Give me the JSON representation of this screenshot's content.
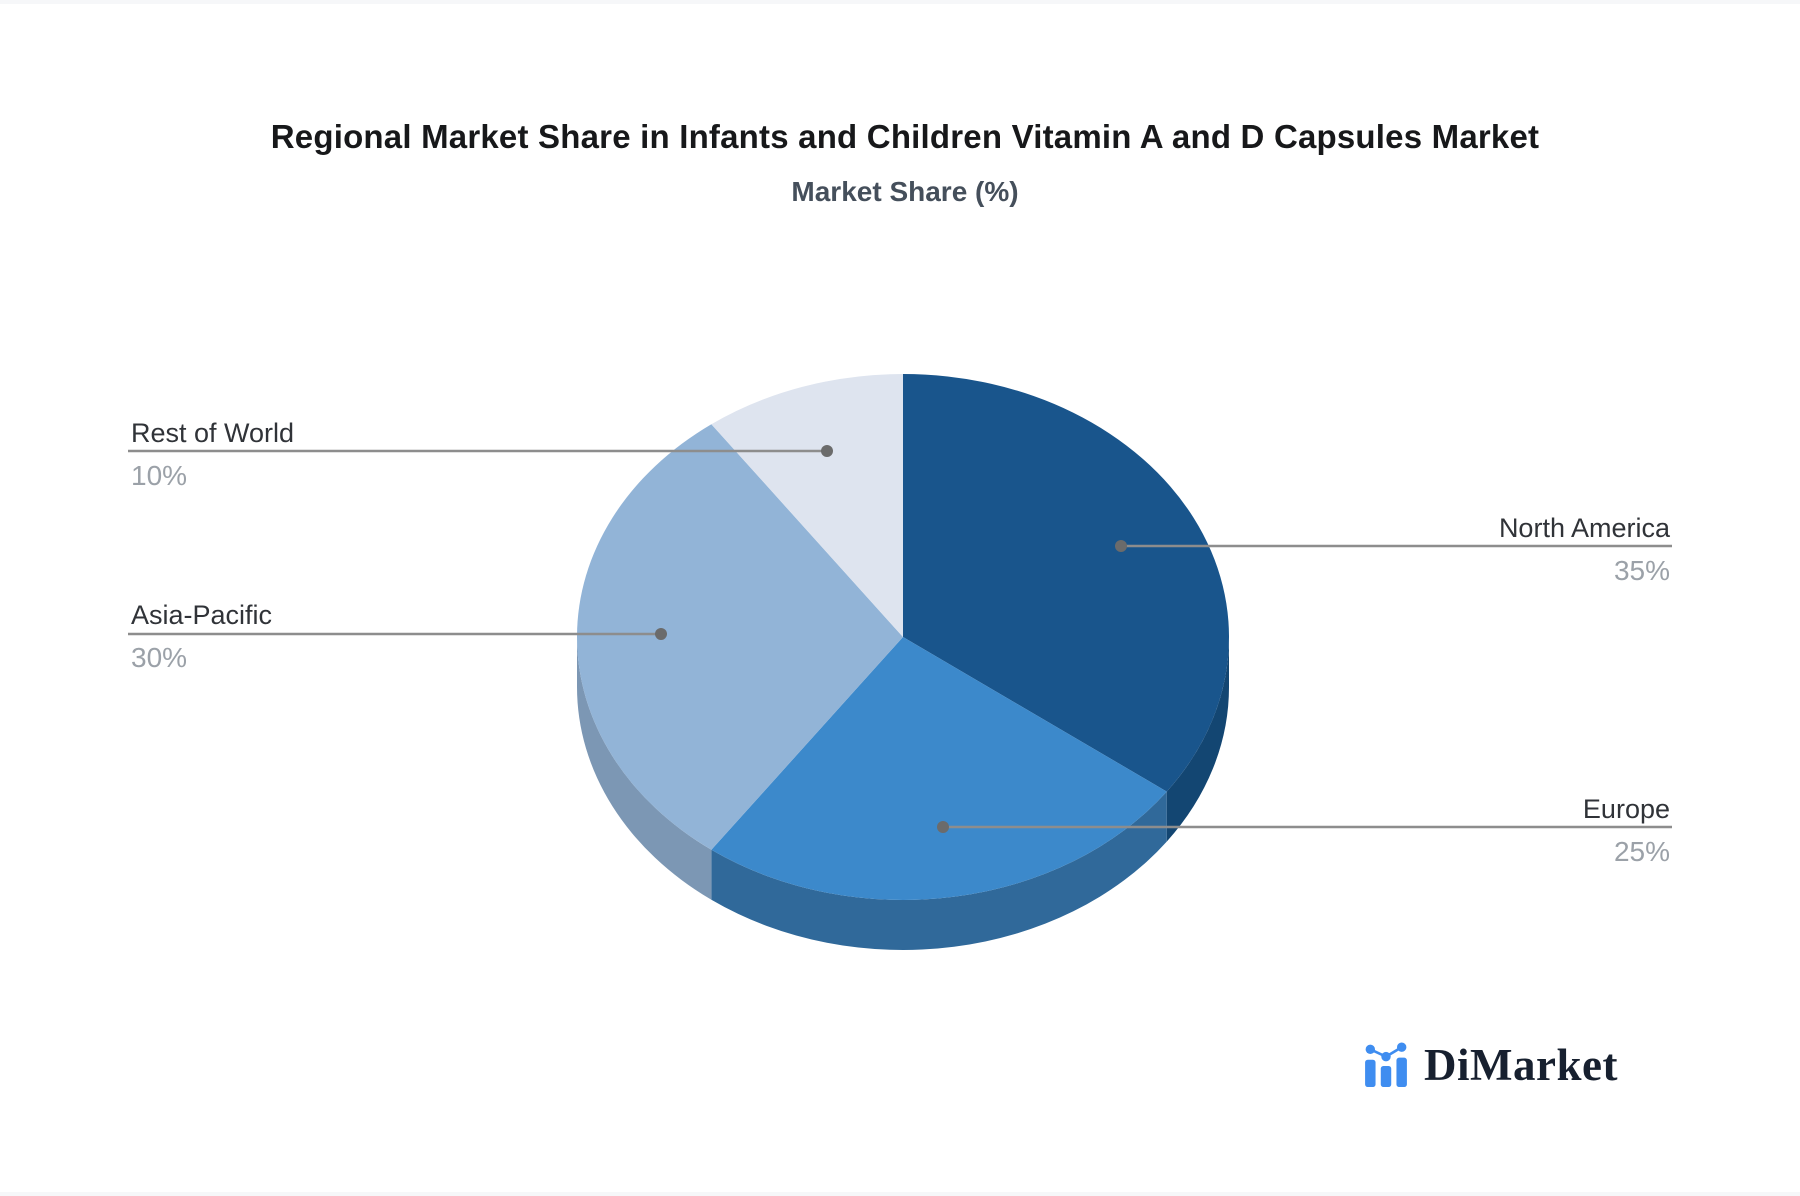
{
  "title": "Regional Market Share in Infants and Children Vitamin A and D Capsules Market",
  "subtitle": "Market Share (%)",
  "brand": {
    "name": "DiMarket",
    "icon": "bar-chart-trend-icon",
    "icon_color": "#3F8DF0",
    "text_color": "#17202f"
  },
  "chart_data": {
    "type": "pie",
    "title": "Regional Market Share in Infants and Children Vitamin A and D Capsules Market",
    "subtitle": "Market Share (%)",
    "unit": "%",
    "effect": "3d",
    "start_angle_deg": 0,
    "direction": "clockwise",
    "legend_position": "callout-labels",
    "slices": [
      {
        "label": "North America",
        "value": 35,
        "pct_label": "35%",
        "color": "#19558C",
        "side_color": "#134672",
        "label_side": "right"
      },
      {
        "label": "Europe",
        "value": 25,
        "pct_label": "25%",
        "color": "#3C89CB",
        "side_color": "#30699A",
        "label_side": "right"
      },
      {
        "label": "Asia-Pacific",
        "value": 30,
        "pct_label": "30%",
        "color": "#92B4D7",
        "side_color": "#7C97B4",
        "label_side": "left"
      },
      {
        "label": "Rest of World",
        "value": 10,
        "pct_label": "10%",
        "color": "#DEE4EF",
        "side_color": "#C2CCDC",
        "label_side": "left"
      }
    ],
    "callout_colors": {
      "line": "#8d8d8d",
      "dot": "#6b6b6b",
      "label_text": "#303338",
      "value_text": "#9ba1a8"
    }
  }
}
